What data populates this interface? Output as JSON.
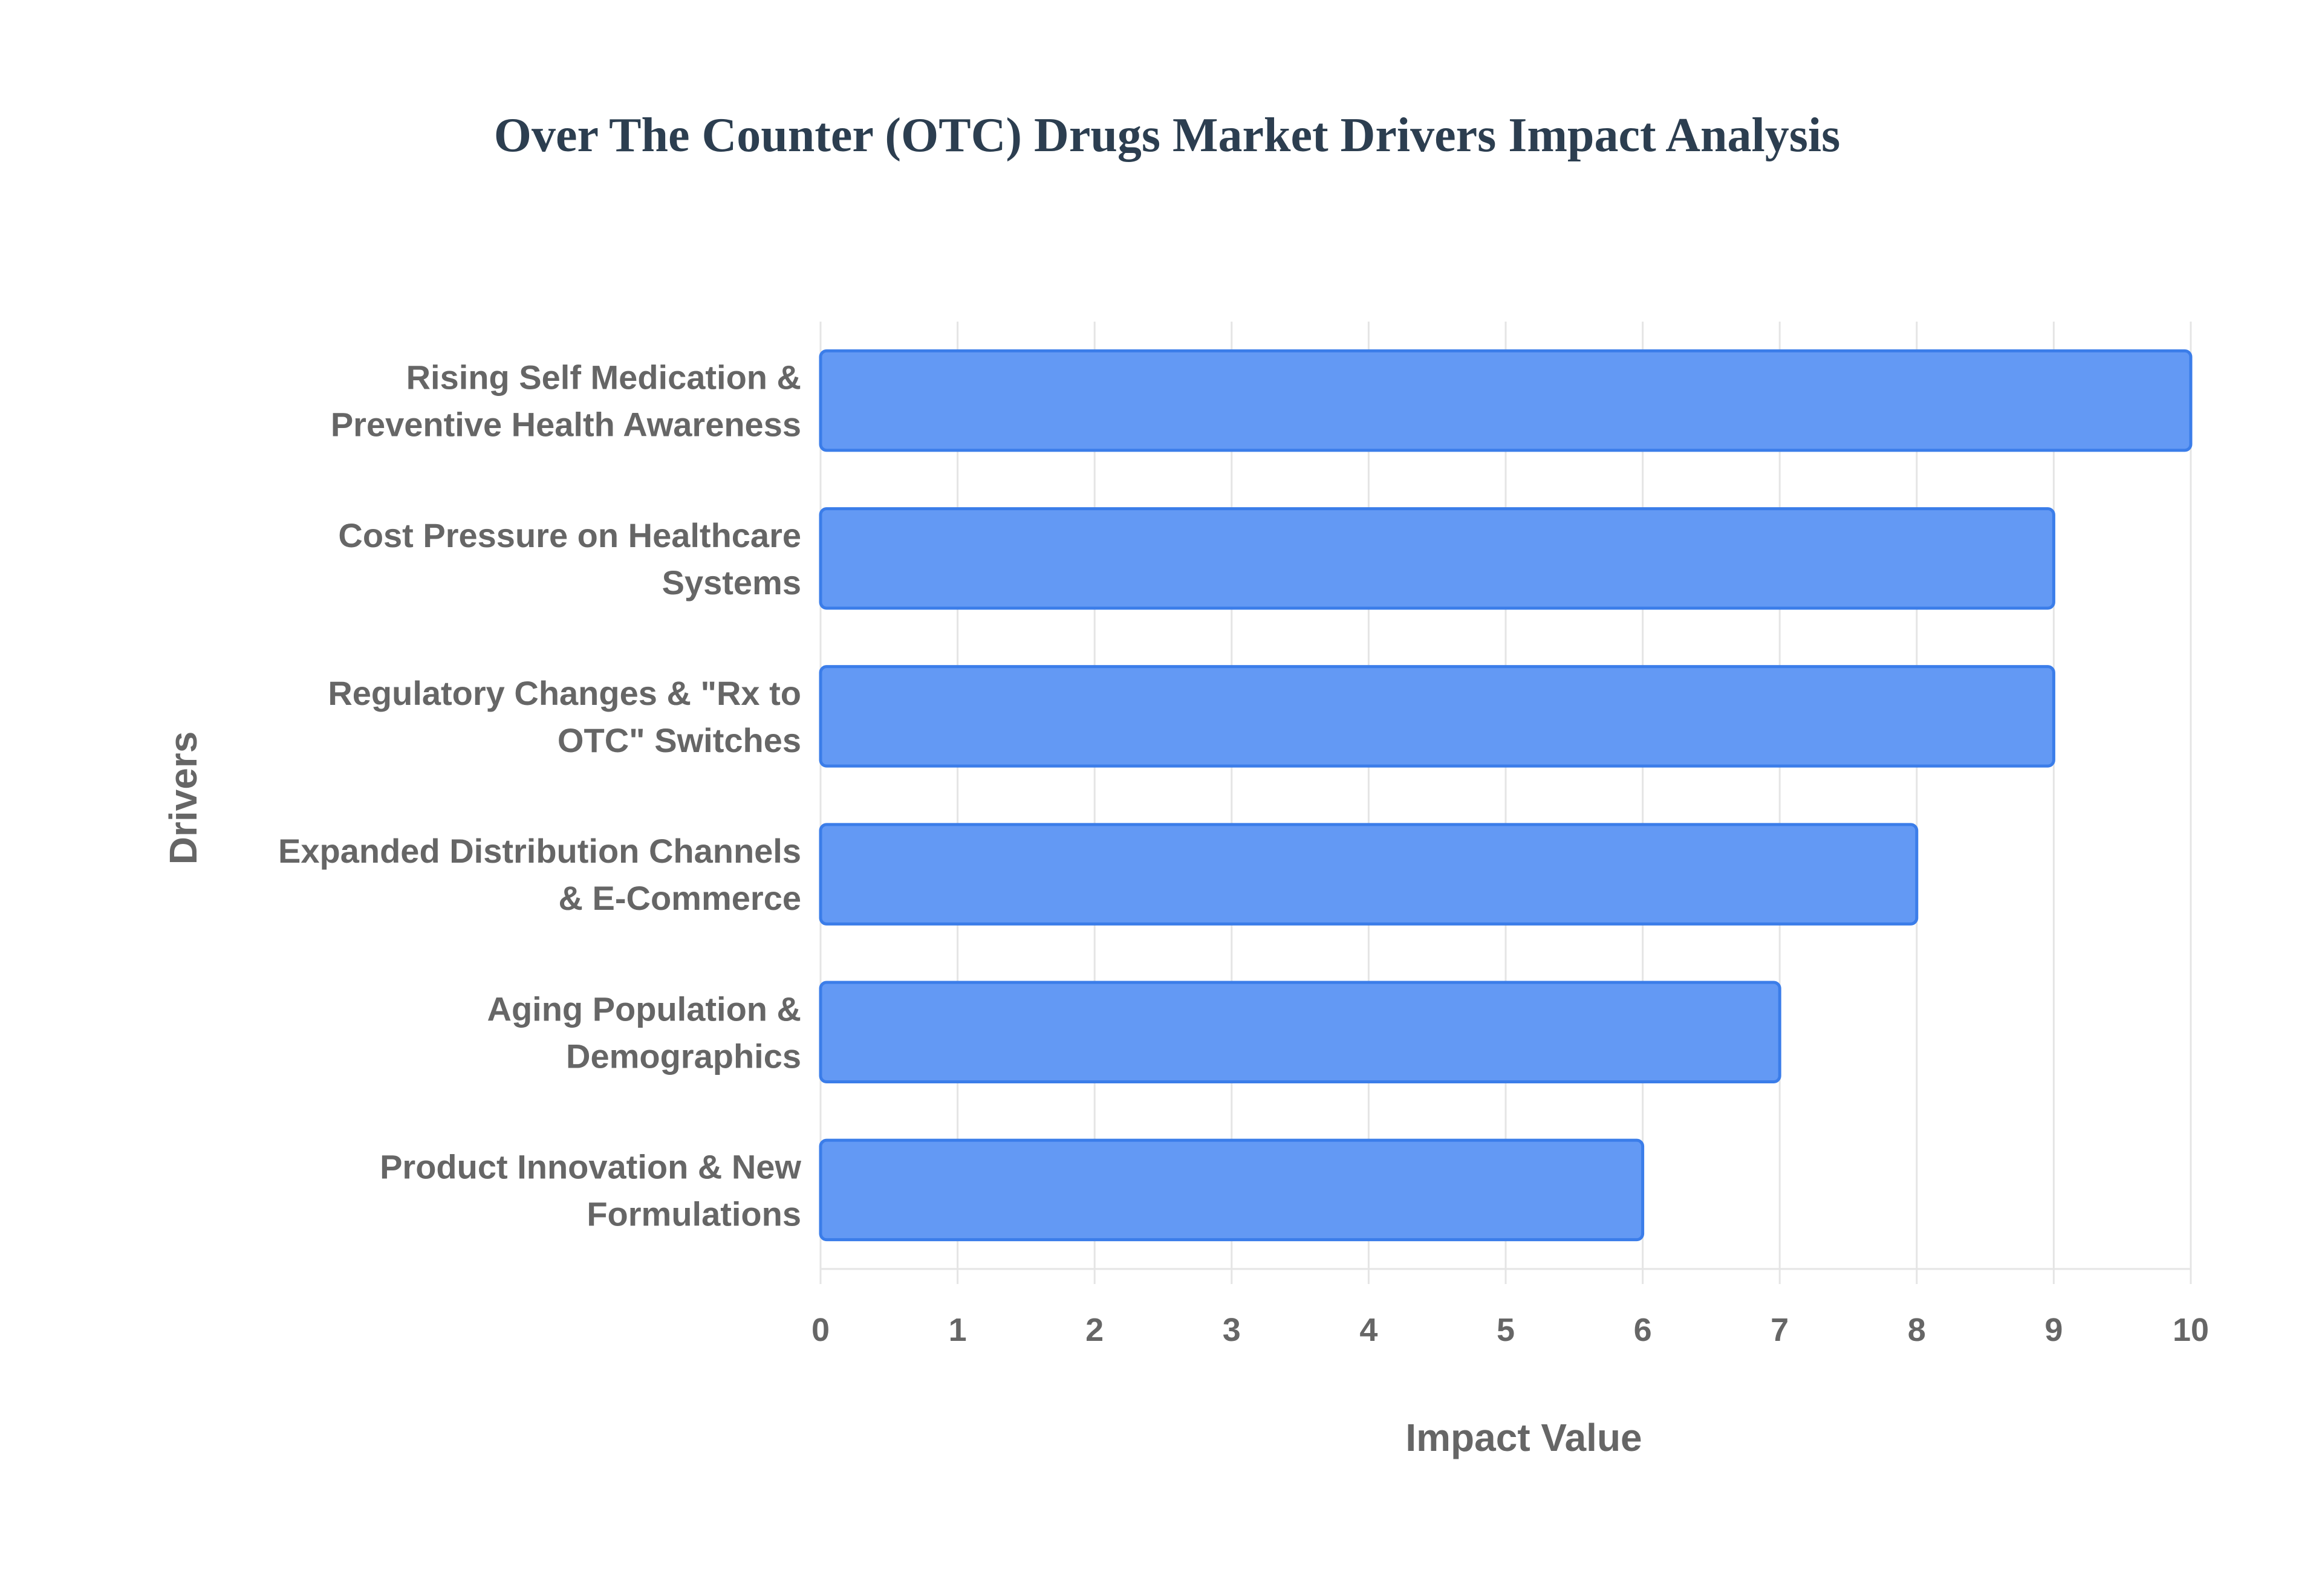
{
  "chart_data": {
    "type": "bar",
    "orientation": "horizontal",
    "title": "Over The Counter (OTC) Drugs Market Drivers Impact Analysis",
    "xlabel": "Impact Value",
    "ylabel": "Drivers",
    "categories": [
      [
        "Rising Self Medication &",
        "Preventive Health Awareness"
      ],
      [
        "Cost Pressure on Healthcare",
        "Systems"
      ],
      [
        "Regulatory Changes & \"Rx to",
        "OTC\" Switches"
      ],
      [
        "Expanded Distribution Channels",
        "& E-Commerce"
      ],
      [
        "Aging Population &",
        "Demographics"
      ],
      [
        "Product Innovation & New",
        "Formulations"
      ]
    ],
    "values": [
      10,
      9,
      9,
      8,
      7,
      6
    ],
    "xlim": [
      0,
      10
    ],
    "xticks": [
      "0",
      "1",
      "2",
      "3",
      "4",
      "5",
      "6",
      "7",
      "8",
      "9",
      "10"
    ],
    "grid": true,
    "legend": "none",
    "colors": {
      "bar_fill": "#6399f4",
      "bar_border": "#3b7de9",
      "grid": "#e5e5e5"
    }
  }
}
